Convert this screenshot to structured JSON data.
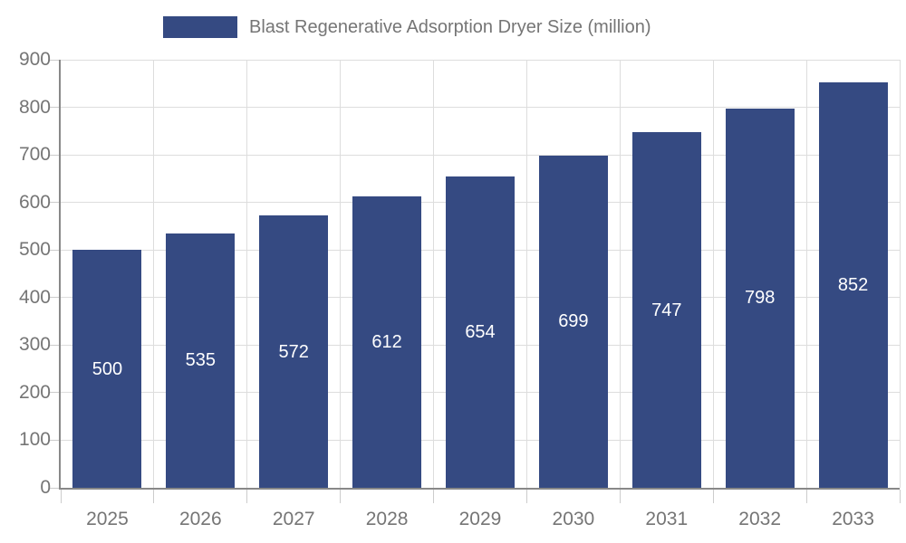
{
  "legend": {
    "label": "Blast Regenerative Adsorption Dryer Size (million)"
  },
  "chart_data": {
    "type": "bar",
    "title": "Blast Regenerative Adsorption Dryer Size (million)",
    "categories": [
      "2025",
      "2026",
      "2027",
      "2028",
      "2029",
      "2030",
      "2031",
      "2032",
      "2033"
    ],
    "values": [
      500,
      535,
      572,
      612,
      654,
      699,
      747,
      798,
      852
    ],
    "xlabel": "",
    "ylabel": "",
    "ylim": [
      0,
      900
    ],
    "yticks": [
      0,
      100,
      200,
      300,
      400,
      500,
      600,
      700,
      800,
      900
    ],
    "grid": true,
    "legend_position": "top",
    "colors": {
      "bar": "#354a82",
      "gridline": "#dddddd",
      "axis_line": "#888888",
      "tick_text": "#757575",
      "value_label": "#ffffff"
    }
  }
}
